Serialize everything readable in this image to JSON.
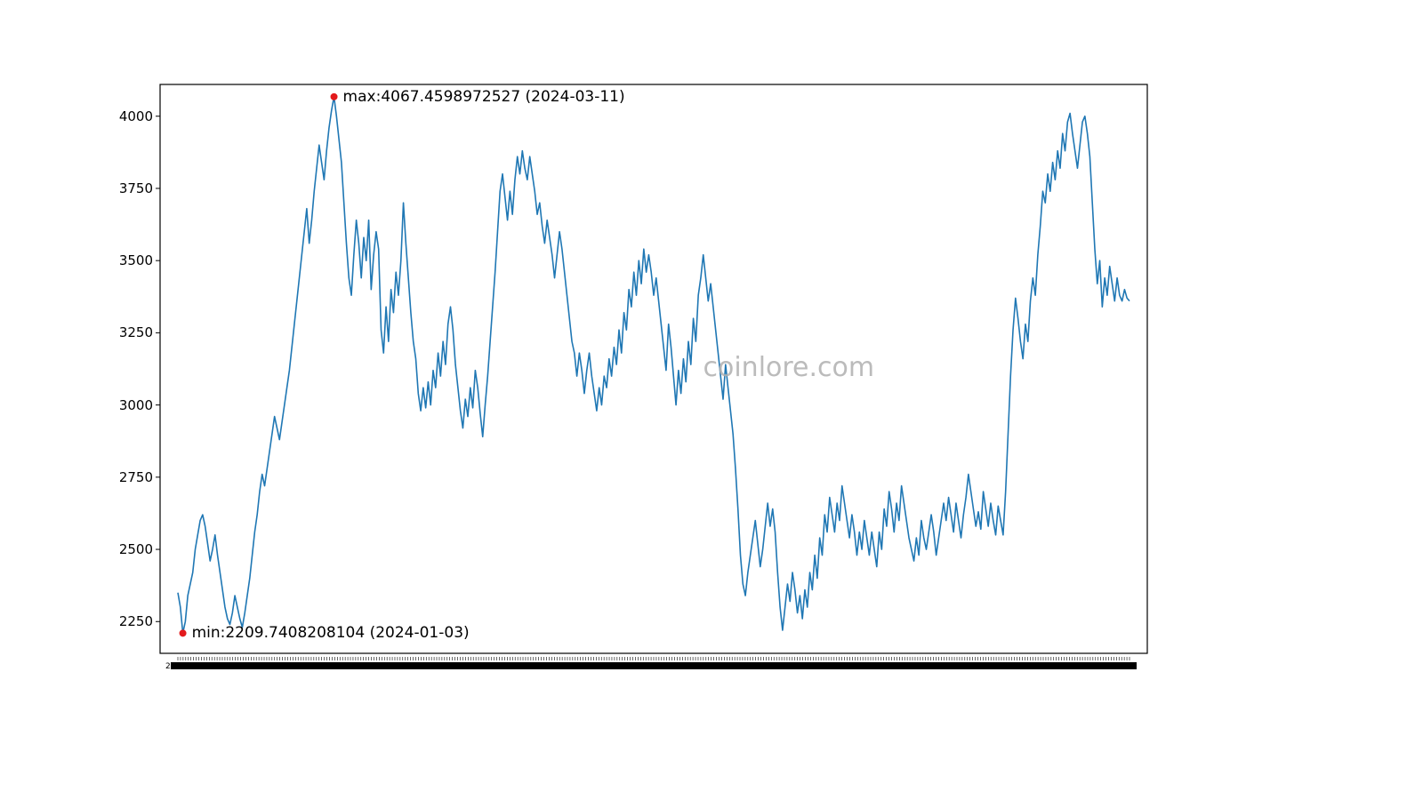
{
  "chart": {
    "type": "line",
    "background_color": "#ffffff",
    "plot_border_color": "#000000",
    "plot_border_width": 1.2,
    "line_color": "#1f77b4",
    "line_width": 1.6,
    "marker_color": "#e31a1c",
    "marker_radius": 4,
    "ylim": [
      2140,
      4110
    ],
    "yticks": [
      2250,
      2500,
      2750,
      3000,
      3250,
      3500,
      3750,
      4000
    ],
    "ytick_labels": [
      "2250",
      "2500",
      "2750",
      "3000",
      "3250",
      "3500",
      "3750",
      "4000"
    ],
    "tick_len": 5,
    "tick_color": "#000000",
    "tick_fontsize": 15,
    "watermark_text": "coinlore.com",
    "watermark_color": "#b0b0b0",
    "watermark_fontsize": 30,
    "xaxis_dense_tick_count": 365,
    "xaxis_label_band_color": "#000000",
    "series": [
      2350,
      2300,
      2209.74,
      2250,
      2340,
      2380,
      2420,
      2500,
      2550,
      2600,
      2620,
      2580,
      2520,
      2460,
      2500,
      2550,
      2480,
      2420,
      2360,
      2300,
      2260,
      2240,
      2280,
      2340,
      2300,
      2260,
      2230,
      2280,
      2340,
      2400,
      2480,
      2560,
      2620,
      2700,
      2760,
      2720,
      2780,
      2840,
      2900,
      2960,
      2920,
      2880,
      2940,
      3000,
      3060,
      3120,
      3200,
      3280,
      3360,
      3440,
      3520,
      3600,
      3680,
      3560,
      3640,
      3740,
      3820,
      3900,
      3840,
      3780,
      3880,
      3960,
      4020,
      4067.46,
      4000,
      3920,
      3840,
      3700,
      3560,
      3440,
      3380,
      3520,
      3640,
      3560,
      3440,
      3580,
      3500,
      3640,
      3400,
      3520,
      3600,
      3540,
      3260,
      3180,
      3340,
      3220,
      3400,
      3320,
      3460,
      3380,
      3500,
      3700,
      3560,
      3440,
      3320,
      3220,
      3160,
      3040,
      2980,
      3060,
      2990,
      3080,
      3000,
      3120,
      3060,
      3180,
      3100,
      3220,
      3140,
      3280,
      3340,
      3260,
      3140,
      3060,
      2980,
      2920,
      3020,
      2960,
      3060,
      2990,
      3120,
      3060,
      2970,
      2890,
      3000,
      3100,
      3220,
      3340,
      3460,
      3600,
      3740,
      3800,
      3720,
      3640,
      3740,
      3660,
      3780,
      3860,
      3800,
      3880,
      3820,
      3780,
      3860,
      3800,
      3740,
      3660,
      3700,
      3620,
      3560,
      3640,
      3580,
      3520,
      3440,
      3520,
      3600,
      3540,
      3460,
      3380,
      3300,
      3220,
      3180,
      3100,
      3180,
      3120,
      3040,
      3120,
      3180,
      3100,
      3040,
      2980,
      3060,
      3000,
      3100,
      3060,
      3160,
      3100,
      3200,
      3140,
      3260,
      3180,
      3320,
      3260,
      3400,
      3340,
      3460,
      3380,
      3500,
      3420,
      3540,
      3460,
      3520,
      3460,
      3380,
      3440,
      3360,
      3280,
      3200,
      3120,
      3280,
      3200,
      3100,
      3000,
      3120,
      3040,
      3160,
      3080,
      3220,
      3140,
      3300,
      3220,
      3380,
      3440,
      3520,
      3440,
      3360,
      3420,
      3340,
      3260,
      3180,
      3100,
      3020,
      3140,
      3060,
      2980,
      2900,
      2780,
      2640,
      2480,
      2380,
      2340,
      2420,
      2480,
      2540,
      2600,
      2520,
      2440,
      2500,
      2580,
      2660,
      2580,
      2640,
      2560,
      2420,
      2300,
      2220,
      2300,
      2380,
      2320,
      2420,
      2360,
      2280,
      2340,
      2260,
      2360,
      2300,
      2420,
      2360,
      2480,
      2400,
      2540,
      2480,
      2620,
      2560,
      2680,
      2620,
      2560,
      2660,
      2600,
      2720,
      2660,
      2600,
      2540,
      2620,
      2560,
      2480,
      2560,
      2500,
      2600,
      2540,
      2480,
      2560,
      2500,
      2440,
      2560,
      2500,
      2640,
      2580,
      2700,
      2640,
      2560,
      2660,
      2600,
      2720,
      2660,
      2600,
      2540,
      2500,
      2460,
      2540,
      2480,
      2600,
      2540,
      2500,
      2560,
      2620,
      2560,
      2480,
      2540,
      2600,
      2660,
      2600,
      2680,
      2620,
      2560,
      2660,
      2600,
      2540,
      2620,
      2680,
      2760,
      2700,
      2640,
      2580,
      2630,
      2570,
      2700,
      2640,
      2580,
      2660,
      2600,
      2550,
      2650,
      2600,
      2550,
      2700,
      2900,
      3100,
      3260,
      3370,
      3300,
      3220,
      3160,
      3280,
      3220,
      3360,
      3440,
      3380,
      3520,
      3620,
      3740,
      3700,
      3800,
      3740,
      3840,
      3780,
      3880,
      3820,
      3940,
      3880,
      3980,
      4010,
      3940,
      3880,
      3820,
      3900,
      3980,
      4000,
      3940,
      3860,
      3700,
      3540,
      3420,
      3500,
      3340,
      3440,
      3380,
      3480,
      3420,
      3360,
      3440,
      3380,
      3360,
      3400,
      3370,
      3360
    ],
    "annotations": {
      "max": {
        "label": "max:4067.4598972527 (2024-03-11)",
        "index": 63,
        "value": 4067.4598972527
      },
      "min": {
        "label": "min:2209.7408208104 (2024-01-03)",
        "index": 2,
        "value": 2209.7408208104
      }
    }
  }
}
